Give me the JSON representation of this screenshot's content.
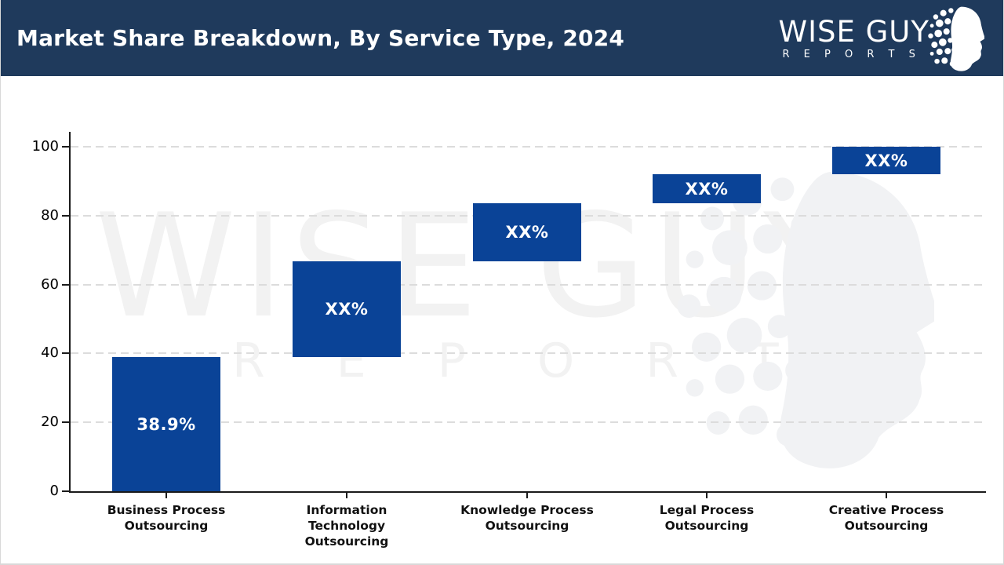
{
  "header": {
    "title": "Market Share Breakdown, By Service Type, 2024",
    "background_color": "#1F3A5C",
    "text_color": "#FFFFFF"
  },
  "logo": {
    "name": "WISE GUY",
    "subtext": "R E P O R T S",
    "face_icon": "dotted-head-profile"
  },
  "watermark": {
    "line1": "WISE GUY",
    "line2": "R E P O R T S",
    "color": "#F2F2F2"
  },
  "chart_data": {
    "type": "bar",
    "subtype": "waterfall",
    "title": "Market Share Breakdown, By Service Type, 2024",
    "xlabel": "",
    "ylabel": "",
    "ylim": [
      0,
      105
    ],
    "yticks": [
      0,
      20,
      40,
      60,
      80,
      100
    ],
    "grid": "horizontal-dashed",
    "grid_color": "#DCDCDC",
    "bar_color": "#0A4397",
    "bar_label_color": "#FFFFFF",
    "categories": [
      "Business Process Outsourcing",
      "Information Technology Outsourcing",
      "Knowledge Process Outsourcing",
      "Legal Process Outsourcing",
      "Creative Process Outsourcing"
    ],
    "category_label_lines": [
      [
        "Business Process",
        "Outsourcing"
      ],
      [
        "Information",
        "Technology",
        "Outsourcing"
      ],
      [
        "Knowledge Process",
        "Outsourcing"
      ],
      [
        "Legal Process",
        "Outsourcing"
      ],
      [
        "Creative Process",
        "Outsourcing"
      ]
    ],
    "segments": [
      {
        "category": "Business Process Outsourcing",
        "start": 0,
        "end": 38.9,
        "value": 38.9,
        "label": "38.9%"
      },
      {
        "category": "Information Technology Outsourcing",
        "start": 38.9,
        "end": 66.7,
        "value": 27.8,
        "label": "XX%"
      },
      {
        "category": "Knowledge Process Outsourcing",
        "start": 66.7,
        "end": 83.6,
        "value": 16.9,
        "label": "XX%"
      },
      {
        "category": "Legal Process Outsourcing",
        "start": 83.6,
        "end": 92.0,
        "value": 8.4,
        "label": "XX%"
      },
      {
        "category": "Creative Process Outsourcing",
        "start": 92.0,
        "end": 100.0,
        "value": 8.0,
        "label": "XX%"
      }
    ]
  }
}
